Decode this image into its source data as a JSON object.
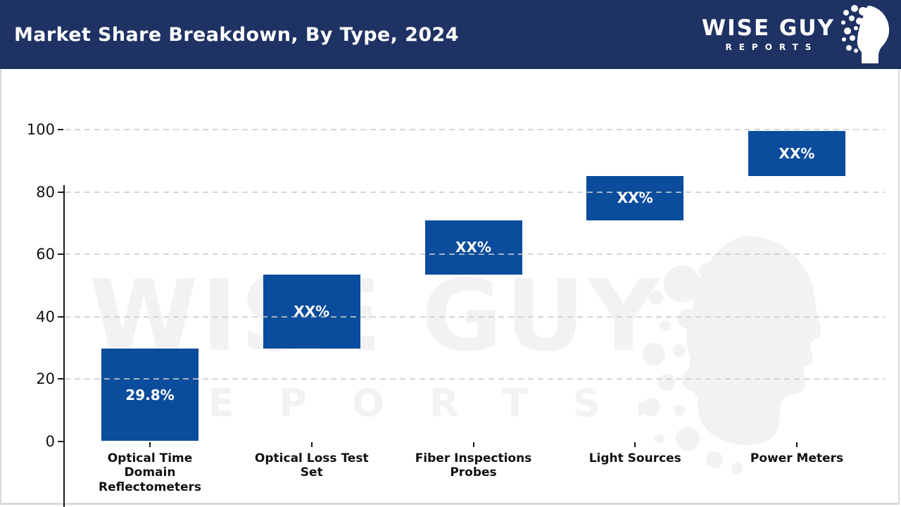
{
  "header": {
    "title": "Market Share Breakdown, By Type, 2024",
    "bg_color": "#1f3264",
    "logo": {
      "line1": "WISE GUY",
      "line2": "REPORTS"
    }
  },
  "watermark": {
    "line1": "WISE GUY",
    "line2": "REPORTS"
  },
  "chart_data": {
    "type": "bar",
    "subtype": "waterfall",
    "title": "Market Share Breakdown, By Type, 2024",
    "xlabel": "",
    "ylabel": "",
    "ylim": [
      0,
      105
    ],
    "yticks": [
      0,
      20,
      40,
      60,
      80,
      100
    ],
    "grid": "dashed horizontal, drawn over bars",
    "legend": "none",
    "bar_color": "#0b4c9c",
    "categories": [
      "Optical Time Domain Reflectometers",
      "Optical Loss Test Set",
      "Fiber Inspections Probes",
      "Light Sources",
      "Power Meters"
    ],
    "bars": [
      {
        "category_lines": [
          "Optical Time",
          "Domain",
          "Reflectometers"
        ],
        "start": 0,
        "end": 29.8,
        "label": "29.8%"
      },
      {
        "category_lines": [
          "Optical Loss Test",
          "Set"
        ],
        "start": 29.8,
        "end": 53.5,
        "label": "XX%"
      },
      {
        "category_lines": [
          "Fiber Inspections",
          "Probes"
        ],
        "start": 53.5,
        "end": 71.0,
        "label": "XX%"
      },
      {
        "category_lines": [
          "Light Sources"
        ],
        "start": 71.0,
        "end": 85.2,
        "label": "XX%"
      },
      {
        "category_lines": [
          "Power Meters"
        ],
        "start": 85.2,
        "end": 99.6,
        "label": "XX%"
      }
    ]
  }
}
